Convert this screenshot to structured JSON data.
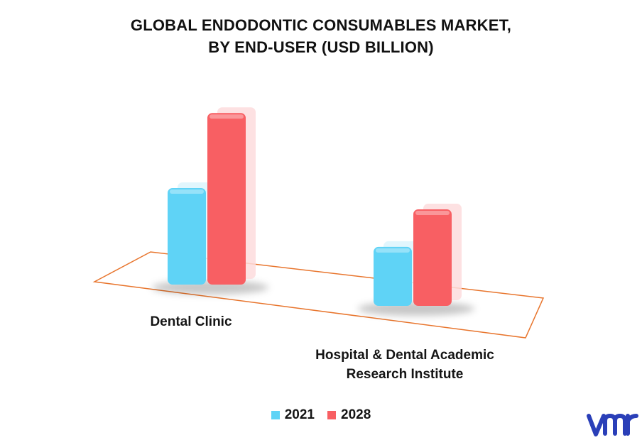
{
  "chart_data": {
    "type": "bar",
    "title_lines": [
      "GLOBAL ENDODONTIC CONSUMABLES MARKET,",
      "BY END-USER (USD BILLION)"
    ],
    "categories": [
      "Dental Clinic",
      "Hospital & Dental Academic Research Institute"
    ],
    "category_label_lines": [
      [
        "Dental Clinic"
      ],
      [
        "Hospital & Dental Academic",
        "Research Institute"
      ]
    ],
    "series": [
      {
        "name": "2021",
        "values": [
          0.9,
          0.55
        ],
        "color": "#5fd3f6"
      },
      {
        "name": "2028",
        "values": [
          1.6,
          0.9
        ],
        "color": "#f85f63"
      }
    ],
    "ylim": [
      0,
      1.8
    ],
    "grid": false,
    "legend_position": "bottom",
    "floor_color": "#e8752d"
  },
  "logo": {
    "name": "vmr-logo",
    "color": "#2a3fb8"
  }
}
